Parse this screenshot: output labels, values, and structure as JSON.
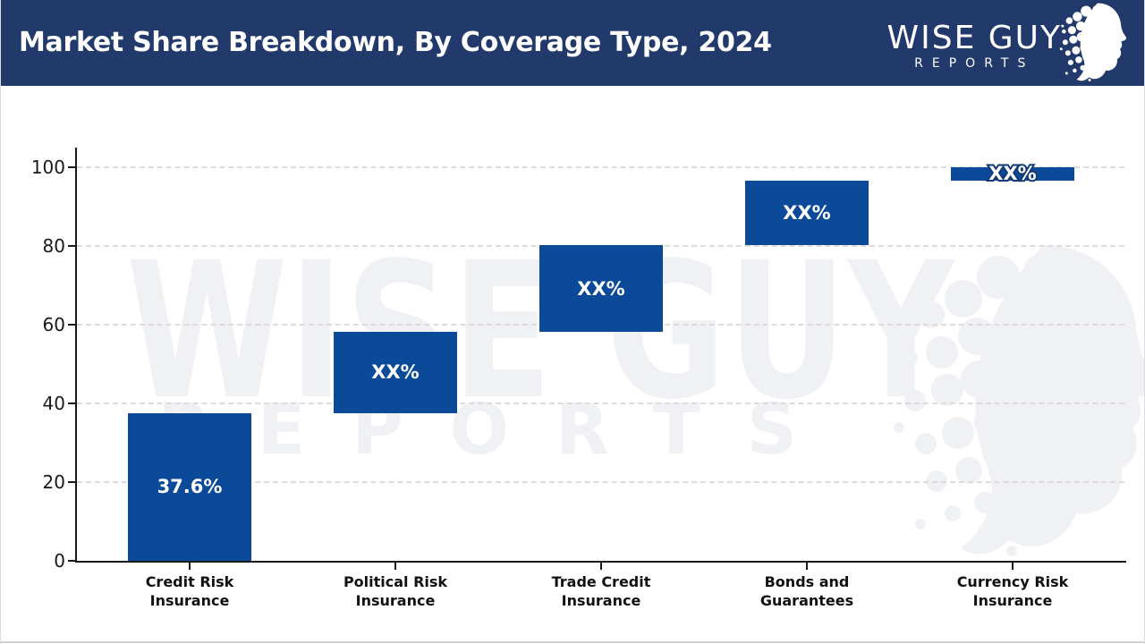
{
  "header": {
    "title": "Market Share Breakdown, By Coverage Type, 2024",
    "background": "#21396B",
    "logo": {
      "line1": "WISE GUY",
      "line2": "REPORTS"
    }
  },
  "watermark": {
    "line1": "WISE GUY",
    "line2": "REPORTS"
  },
  "colors": {
    "bar": "#0B4A99",
    "grid": "#dcdcdc",
    "axis": "#1a1a1a",
    "bar_label": "#ffffff",
    "bar_label_outline": "#123a75",
    "watermark": "#f0f1f4"
  },
  "chart_data": {
    "type": "bar",
    "subtype": "waterfall",
    "title": "Market Share Breakdown, By Coverage Type, 2024",
    "xlabel": "",
    "ylabel": "",
    "ylim": [
      0,
      105
    ],
    "yticks": [
      0,
      20,
      40,
      60,
      80,
      100
    ],
    "grid": "horizontal-dashed",
    "legend": "none",
    "categories": [
      {
        "line1": "Credit Risk",
        "line2": "Insurance"
      },
      {
        "line1": "Political Risk",
        "line2": "Insurance"
      },
      {
        "line1": "Trade Credit",
        "line2": "Insurance"
      },
      {
        "line1": "Bonds and",
        "line2": "Guarantees"
      },
      {
        "line1": "Currency Risk",
        "line2": "Insurance"
      }
    ],
    "segments": [
      {
        "category": "Credit Risk Insurance",
        "start": 0,
        "end": 37.6,
        "value": 37.6,
        "label": "37.6%"
      },
      {
        "category": "Political Risk Insurance",
        "start": 37.6,
        "end": 58.2,
        "value": 20.6,
        "label": "XX%"
      },
      {
        "category": "Trade Credit Insurance",
        "start": 58.2,
        "end": 80.2,
        "value": 22.0,
        "label": "XX%"
      },
      {
        "category": "Bonds and Guarantees",
        "start": 80.2,
        "end": 96.6,
        "value": 16.4,
        "label": "XX%"
      },
      {
        "category": "Currency Risk Insurance",
        "start": 96.6,
        "end": 100,
        "value": 3.4,
        "label": "XX%"
      }
    ]
  }
}
